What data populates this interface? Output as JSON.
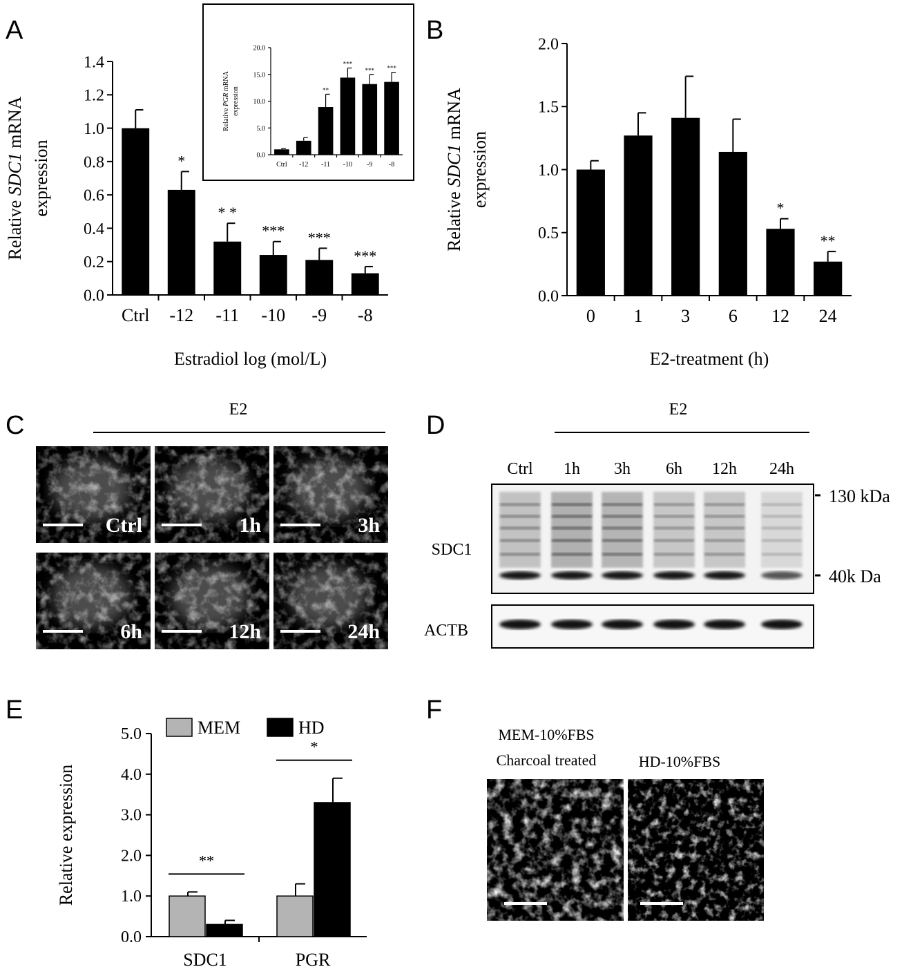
{
  "panels": {
    "A": "A",
    "B": "B",
    "C": "C",
    "D": "D",
    "E": "E",
    "F": "F"
  },
  "chart_data": [
    {
      "id": "A",
      "type": "bar",
      "categories": [
        "Ctrl",
        "-12",
        "-11",
        "-10",
        "-9",
        "-8"
      ],
      "values": [
        1.0,
        0.63,
        0.32,
        0.24,
        0.21,
        0.13
      ],
      "errors": [
        0.11,
        0.11,
        0.11,
        0.08,
        0.07,
        0.04
      ],
      "significance": [
        "",
        "*",
        "* *",
        "***",
        "***",
        "***"
      ],
      "xlabel": "Estradiol  log (mol/L)",
      "ylabel_pre": "Relative ",
      "ylabel_gene": "SDC1",
      "ylabel_post": " mRNA",
      "ylabel_line2": "expression",
      "ylim": [
        0,
        1.4
      ],
      "yticks": [
        "0.0",
        "0.2",
        "0.4",
        "0.6",
        "0.8",
        "1.0",
        "1.2",
        "1.4"
      ]
    },
    {
      "id": "A-inset",
      "type": "bar",
      "categories": [
        "Ctrl",
        "-12",
        "-11",
        "-10",
        "-9",
        "-8"
      ],
      "values": [
        1.0,
        2.6,
        8.9,
        14.4,
        13.2,
        13.6
      ],
      "errors": [
        0.2,
        0.6,
        2.4,
        1.8,
        1.8,
        1.8
      ],
      "significance": [
        "",
        "",
        "**",
        "***",
        "***",
        "***"
      ],
      "ylabel_pre": "Relative ",
      "ylabel_gene": "PGR",
      "ylabel_post": " mRNA",
      "ylabel_line2": "expression",
      "ylim": [
        0,
        20
      ],
      "yticks": [
        "0.0",
        "5.0",
        "10.0",
        "15.0",
        "20.0"
      ]
    },
    {
      "id": "B",
      "type": "bar",
      "categories": [
        "0",
        "1",
        "3",
        "6",
        "12",
        "24"
      ],
      "values": [
        1.0,
        1.27,
        1.41,
        1.14,
        0.53,
        0.27
      ],
      "errors": [
        0.07,
        0.18,
        0.33,
        0.26,
        0.08,
        0.08
      ],
      "significance": [
        "",
        "",
        "",
        "",
        "*",
        "**"
      ],
      "xlabel": "E2-treatment (h)",
      "ylabel_pre": "Relative ",
      "ylabel_gene": "SDC1",
      "ylabel_post": " mRNA",
      "ylabel_line2": "expression",
      "ylim": [
        0,
        2.0
      ],
      "yticks": [
        "0.0",
        "0.5",
        "1.0",
        "1.5",
        "2.0"
      ]
    },
    {
      "id": "E",
      "type": "bar",
      "categories": [
        "SDC1",
        "PGR"
      ],
      "series": [
        {
          "name": "MEM",
          "color": "#b4b4b4",
          "values": [
            1.0,
            1.0
          ],
          "errors": [
            0.1,
            0.3
          ]
        },
        {
          "name": "HD",
          "color": "#000000",
          "values": [
            0.3,
            3.3
          ],
          "errors": [
            0.1,
            0.6
          ]
        }
      ],
      "significance": [
        "**",
        "*"
      ],
      "ylabel": "Relative  expression",
      "ylim": [
        0,
        5.0
      ],
      "yticks": [
        "0.0",
        "1.0",
        "2.0",
        "3.0",
        "4.0",
        "5.0"
      ],
      "legend": "top"
    }
  ],
  "panel_C": {
    "header": "E2",
    "tiles": [
      "Ctrl",
      "1h",
      "3h",
      "6h",
      "12h",
      "24h"
    ]
  },
  "panel_D": {
    "header": "E2",
    "lanes": [
      "Ctrl",
      "1h",
      "3h",
      "6h",
      "12h",
      "24h"
    ],
    "row_labels": [
      "SDC1",
      "ACTB"
    ],
    "markers": [
      "130 kDa",
      "40k Da"
    ]
  },
  "panel_F": {
    "label_left_1": "MEM-10%FBS",
    "label_left_2": "Charcoal treated",
    "label_right": "HD-10%FBS"
  }
}
